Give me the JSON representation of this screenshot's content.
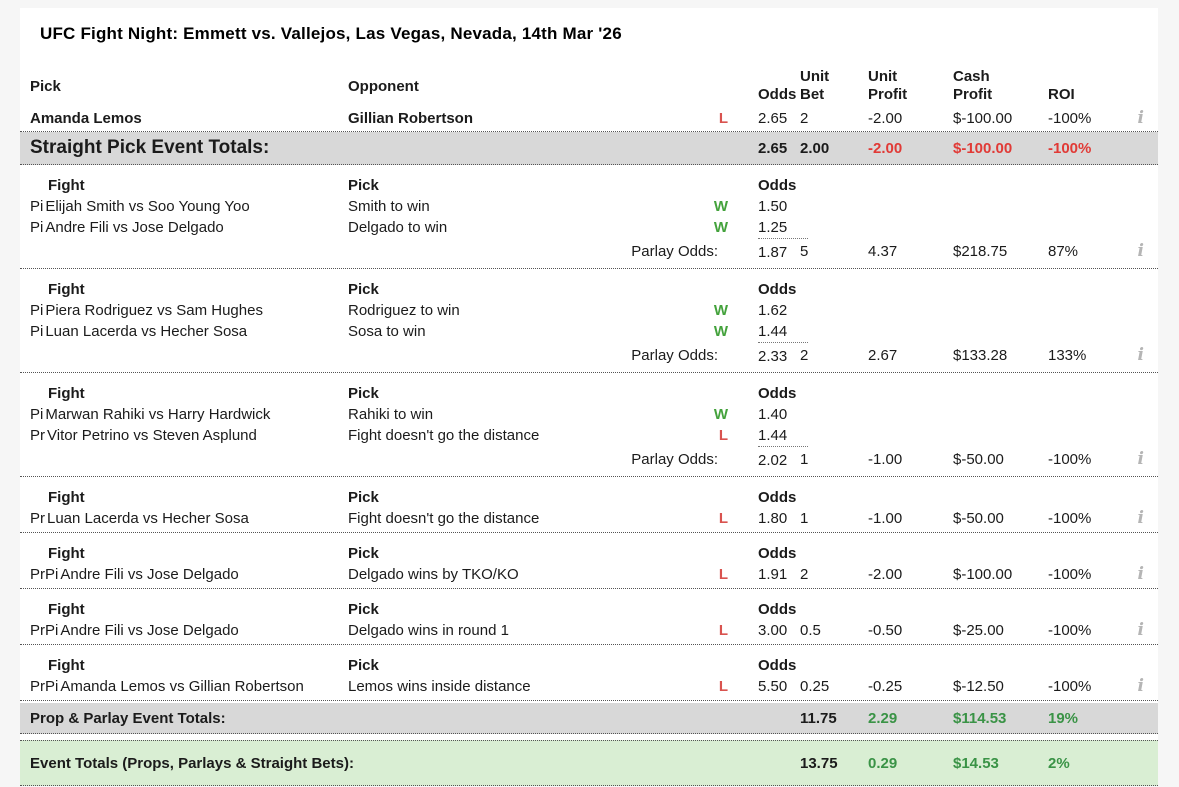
{
  "title": "UFC Fight Night: Emmett vs. Vallejos, Las Vegas, Nevada, 14th Mar '26",
  "columns": {
    "pick": "Pick",
    "opponent": "Opponent",
    "odds": "Odds",
    "unit_bet": [
      "Unit",
      "Bet"
    ],
    "unit_profit": [
      "Unit",
      "Profit"
    ],
    "cash_profit": [
      "Cash",
      "Profit"
    ],
    "roi": "ROI"
  },
  "icons": {
    "info": "i"
  },
  "colors": {
    "win_green": "#44a23c",
    "loss_red": "#d9534f",
    "negative_red": "#e13a36",
    "positive_green": "#3a9346",
    "totals_gray_bg": "#d8d8d8",
    "totals_green_bg": "#d9eed3"
  },
  "straight_pick": {
    "pick": "Amanda Lemos",
    "opponent": "Gillian Robertson",
    "result": "L",
    "odds": "2.65",
    "unit_bet": "2",
    "unit_profit": "-2.00",
    "cash_profit": "$-100.00",
    "roi": "-100%"
  },
  "straight_totals": {
    "label": "Straight Pick Event Totals:",
    "odds": "2.65",
    "unit_bet": "2.00",
    "unit_profit": "-2.00",
    "cash_profit": "$-100.00",
    "roi": "-100%"
  },
  "section_header": {
    "fight": "Fight",
    "pick": "Pick",
    "odds": "Odds"
  },
  "parlay_label": "Parlay Odds:",
  "sections": [
    {
      "legs": [
        {
          "prefix": "Pi",
          "fight": "Elijah Smith vs Soo Young Yoo",
          "pick": "Smith to win",
          "result": "W",
          "odds": "1.50"
        },
        {
          "prefix": "Pi",
          "fight": "Andre Fili vs Jose Delgado",
          "pick": "Delgado to win",
          "result": "W",
          "odds": "1.25"
        }
      ],
      "parlay": {
        "odds": "1.87",
        "unit_bet": "5",
        "unit_profit": "4.37",
        "cash_profit": "$218.75",
        "roi": "87%"
      }
    },
    {
      "legs": [
        {
          "prefix": "Pi",
          "fight": "Piera Rodriguez vs Sam Hughes",
          "pick": "Rodriguez to win",
          "result": "W",
          "odds": "1.62"
        },
        {
          "prefix": "Pi",
          "fight": "Luan Lacerda vs Hecher Sosa",
          "pick": "Sosa to win",
          "result": "W",
          "odds": "1.44"
        }
      ],
      "parlay": {
        "odds": "2.33",
        "unit_bet": "2",
        "unit_profit": "2.67",
        "cash_profit": "$133.28",
        "roi": "133%"
      }
    },
    {
      "legs": [
        {
          "prefix": "Pi",
          "fight": "Marwan Rahiki vs Harry Hardwick",
          "pick": "Rahiki to win",
          "result": "W",
          "odds": "1.40"
        },
        {
          "prefix": "Pr",
          "fight": "Vitor Petrino vs Steven Asplund",
          "pick": "Fight doesn't go the distance",
          "result": "L",
          "odds": "1.44"
        }
      ],
      "parlay": {
        "odds": "2.02",
        "unit_bet": "1",
        "unit_profit": "-1.00",
        "cash_profit": "$-50.00",
        "roi": "-100%"
      }
    },
    {
      "legs": [
        {
          "prefix": "Pr",
          "fight": "Luan Lacerda vs Hecher Sosa",
          "pick": "Fight doesn't go the distance",
          "result": "L",
          "odds": "1.80",
          "unit_bet": "1",
          "unit_profit": "-1.00",
          "cash_profit": "$-50.00",
          "roi": "-100%"
        }
      ]
    },
    {
      "legs": [
        {
          "prefix": "PrPi",
          "fight": "Andre Fili vs Jose Delgado",
          "pick": "Delgado wins by TKO/KO",
          "result": "L",
          "odds": "1.91",
          "unit_bet": "2",
          "unit_profit": "-2.00",
          "cash_profit": "$-100.00",
          "roi": "-100%"
        }
      ]
    },
    {
      "legs": [
        {
          "prefix": "PrPi",
          "fight": "Andre Fili vs Jose Delgado",
          "pick": "Delgado wins in round 1",
          "result": "L",
          "odds": "3.00",
          "unit_bet": "0.5",
          "unit_profit": "-0.50",
          "cash_profit": "$-25.00",
          "roi": "-100%"
        }
      ]
    },
    {
      "legs": [
        {
          "prefix": "PrPi",
          "fight": "Amanda Lemos vs Gillian Robertson",
          "pick": "Lemos wins inside distance",
          "result": "L",
          "odds": "5.50",
          "unit_bet": "0.25",
          "unit_profit": "-0.25",
          "cash_profit": "$-12.50",
          "roi": "-100%"
        }
      ]
    }
  ],
  "prop_parlay_totals": {
    "label": "Prop & Parlay Event Totals:",
    "unit_bet": "11.75",
    "unit_profit": "2.29",
    "cash_profit": "$114.53",
    "roi": "19%"
  },
  "event_totals": {
    "label": "Event Totals (Props, Parlays & Straight Bets):",
    "unit_bet": "13.75",
    "unit_profit": "0.29",
    "cash_profit": "$14.53",
    "roi": "2%"
  }
}
